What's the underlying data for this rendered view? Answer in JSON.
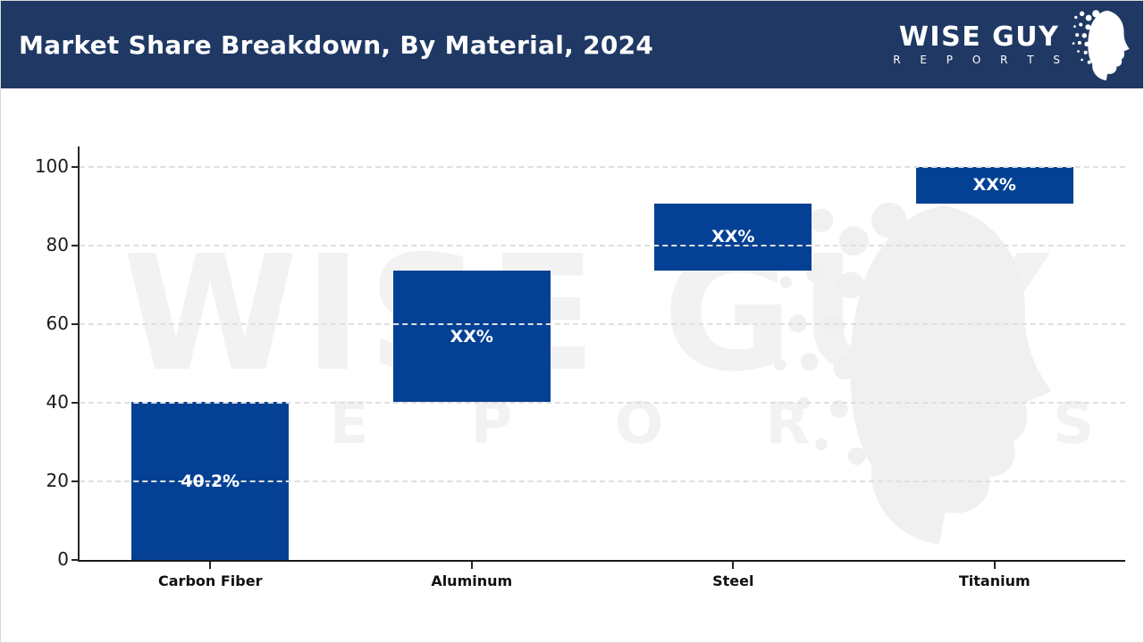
{
  "header": {
    "title": "Market Share Breakdown, By Material, 2024",
    "bg_color": "#1F3864",
    "brand": {
      "line1": "WISE GUY",
      "line2": "R E P O R T S",
      "icon": "wiseguy-head-icon"
    }
  },
  "watermark": {
    "line1": "WISE GUY",
    "line2": "R E P O R T S",
    "icon": "wiseguy-head-watermark-icon",
    "color": "#f2f2f2"
  },
  "chart_data": {
    "type": "bar",
    "subtype": "waterfall",
    "title": "Market Share Breakdown, By Material, 2024",
    "xlabel": "",
    "ylabel": "",
    "categories": [
      "Carbon Fiber",
      "Aluminum",
      "Steel",
      "Titanium"
    ],
    "segments": [
      {
        "category": "Carbon Fiber",
        "start": 0,
        "end": 40.2,
        "delta": 40.2,
        "label": "40.2%"
      },
      {
        "category": "Aluminum",
        "start": 40.2,
        "end": 73.6,
        "delta": 33.4,
        "label": "XX%"
      },
      {
        "category": "Steel",
        "start": 73.6,
        "end": 90.7,
        "delta": 17.1,
        "label": "XX%"
      },
      {
        "category": "Titanium",
        "start": 90.7,
        "end": 100,
        "delta": 9.3,
        "label": "XX%"
      }
    ],
    "yticks": [
      0,
      20,
      40,
      60,
      80,
      100
    ],
    "ylim": [
      0,
      105.2
    ],
    "grid": "horizontal-dashed",
    "legend": "none",
    "bar_color": "#044194",
    "label_color": "#ffffff"
  }
}
